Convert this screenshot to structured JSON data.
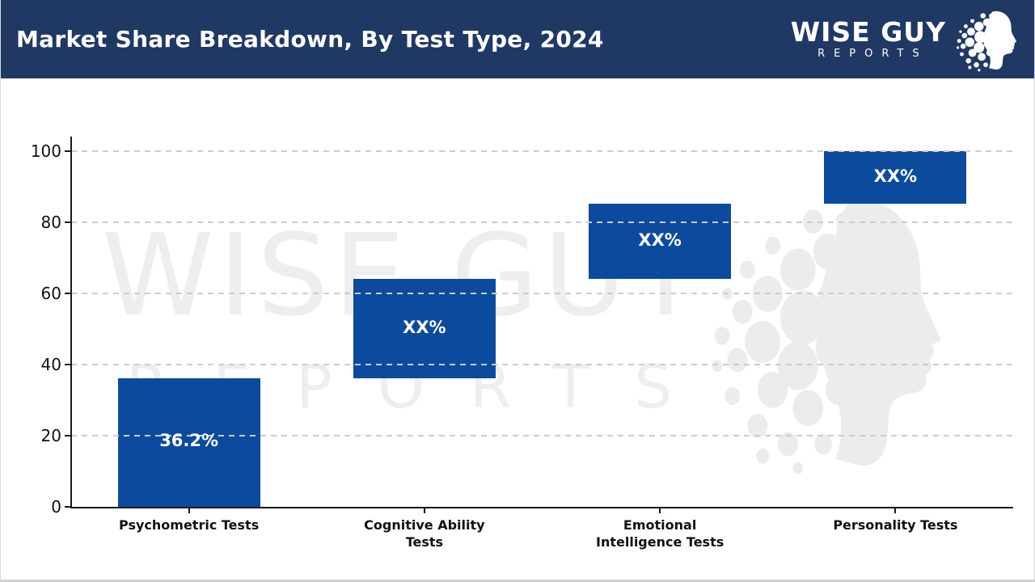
{
  "header": {
    "title": "Market Share Breakdown, By Test Type, 2024",
    "bg_color": "#203864",
    "logo": {
      "name_top": "WISE GUY",
      "name_bottom": "REPORTS",
      "head_icon": "dotted-head-profile"
    }
  },
  "watermark": {
    "text_top": "WISE GUY",
    "text_bottom": "REPORTS",
    "graphic": "dotted-head-profile",
    "color": "#eeeeee"
  },
  "chart_data": {
    "type": "bar",
    "subtype": "floating-waterfall",
    "title": "Market Share Breakdown, By Test Type, 2024",
    "categories": [
      "Psychometric Tests",
      "Cognitive Ability\nTests",
      "Emotional\nIntelligence Tests",
      "Personality Tests"
    ],
    "series": [
      {
        "name": "Psychometric Tests",
        "start": 0,
        "end": 36.2,
        "label": "36.2%"
      },
      {
        "name": "Cognitive Ability Tests",
        "start": 36.2,
        "end": 64.0,
        "label": "XX%"
      },
      {
        "name": "Emotional Intelligence Tests",
        "start": 64.0,
        "end": 85.2,
        "label": "XX%"
      },
      {
        "name": "Personality Tests",
        "start": 85.2,
        "end": 100,
        "label": "XX%"
      }
    ],
    "xlabel": "",
    "ylabel": "",
    "yticks": [
      0,
      20,
      40,
      60,
      80,
      100
    ],
    "ylim": [
      0,
      104
    ],
    "bar_color": "#0c4a9e",
    "bar_label_color": "#ffffff",
    "grid": true,
    "grid_style": "dashed",
    "grid_color": "#cccccc",
    "axis_color": "#1a1a1a",
    "legend": false
  }
}
